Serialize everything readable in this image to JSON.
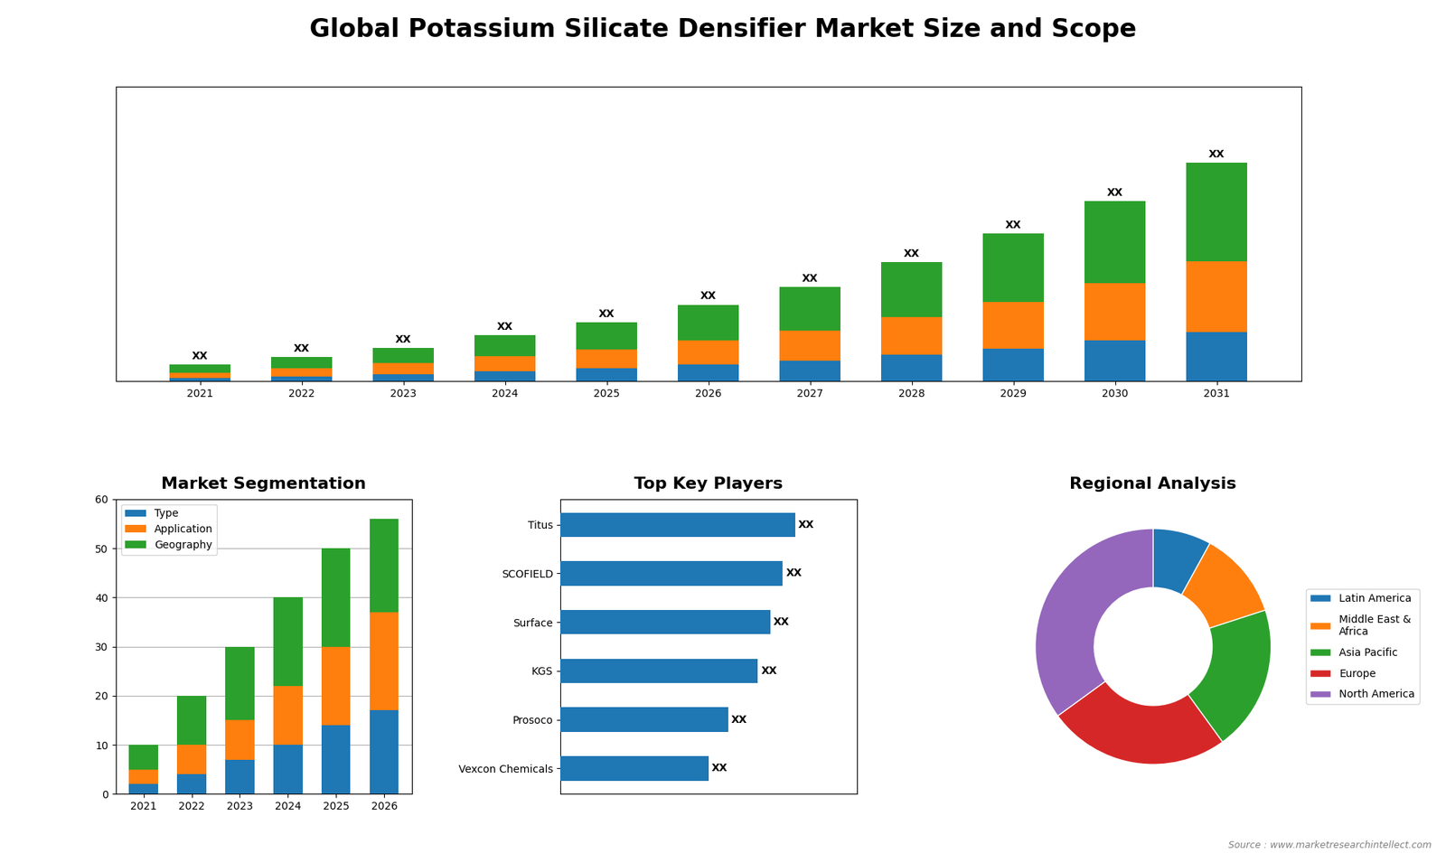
{
  "title": "Global Potassium Silicate Densifier Market Size and Scope",
  "annotations": [
    "Source : www.marketresearchintellect.com"
  ],
  "chart_data": [
    {
      "type": "bar",
      "stacked": true,
      "categories": [
        "2021",
        "2022",
        "2023",
        "2024",
        "2025",
        "2026",
        "2027",
        "2028",
        "2029",
        "2030",
        "2031"
      ],
      "series": [
        {
          "values": [
            0.6,
            0.9,
            1.3,
            1.8,
            2.3,
            3.0,
            3.8,
            4.8,
            6.0,
            7.5,
            9.0
          ]
        },
        {
          "values": [
            1.0,
            1.5,
            2.0,
            2.8,
            3.5,
            4.5,
            5.5,
            7.0,
            8.5,
            10.5,
            13.0
          ]
        },
        {
          "values": [
            1.5,
            2.0,
            2.8,
            3.8,
            5.0,
            6.5,
            8.0,
            10.0,
            12.5,
            15.0,
            18.0
          ],
          "value_labels": [
            "XX",
            "XX",
            "XX",
            "XX",
            "XX",
            "XX",
            "XX",
            "XX",
            "XX",
            "XX",
            "XX"
          ]
        }
      ],
      "ylim": [
        0,
        54
      ],
      "tick_labels": "x"
    },
    {
      "type": "bar",
      "stacked": true,
      "title": "Market Segmentation",
      "categories": [
        "2021",
        "2022",
        "2023",
        "2024",
        "2025",
        "2026"
      ],
      "series": [
        {
          "name": "Type",
          "values": [
            2,
            4,
            7,
            10,
            14,
            17
          ]
        },
        {
          "name": "Application",
          "values": [
            3,
            6,
            8,
            12,
            16,
            20
          ]
        },
        {
          "name": "Geography",
          "values": [
            5,
            10,
            15,
            18,
            20,
            19
          ]
        }
      ],
      "ylim": [
        0,
        60
      ],
      "yticks": [
        0,
        10,
        20,
        30,
        40,
        50,
        60
      ],
      "grid": true,
      "legend": "upper left"
    },
    {
      "type": "bar",
      "orientation": "horizontal",
      "title": "Top Key Players",
      "categories": [
        "Titus",
        "SCOFIELD",
        "Surface",
        "KGS",
        "Prosoco",
        "Vexcon Chemicals"
      ],
      "values": [
        95,
        90,
        85,
        80,
        68,
        60
      ],
      "value_labels": [
        "XX",
        "XX",
        "XX",
        "XX",
        "XX",
        "XX"
      ],
      "xlim": [
        0,
        120
      ],
      "tick_labels": "y"
    },
    {
      "type": "pie",
      "title": "Regional Analysis",
      "categories": [
        "Latin America",
        "Middle East &\nAfrica",
        "Asia Pacific",
        "Europe",
        "North America"
      ],
      "values": [
        8,
        12,
        20,
        25,
        35
      ],
      "legend": "right"
    }
  ]
}
